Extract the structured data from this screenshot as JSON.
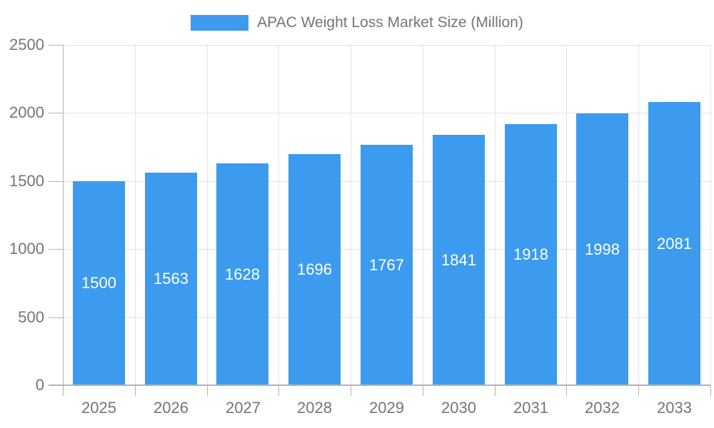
{
  "chart_data": {
    "type": "bar",
    "title": "APAC Weight Loss Market Size (Million)",
    "categories": [
      "2025",
      "2026",
      "2027",
      "2028",
      "2029",
      "2030",
      "2031",
      "2032",
      "2033"
    ],
    "values": [
      1500,
      1563,
      1628,
      1696,
      1767,
      1841,
      1918,
      1998,
      2081
    ],
    "xlabel": "",
    "ylabel": "",
    "ylim": [
      0,
      2500
    ],
    "yticks": [
      0,
      500,
      1000,
      1500,
      2000,
      2500
    ],
    "grid": true,
    "legend_position": "top",
    "value_label_position": "inside-center",
    "colors": {
      "bar": "#3C9BEE",
      "bar_label_text": "#FFFFFF",
      "axis_text": "#757575",
      "legend_text": "#757575",
      "gridline": "#E3E3E3",
      "axis_line": "#B3B3B3",
      "background": "#FFFFFF"
    }
  }
}
